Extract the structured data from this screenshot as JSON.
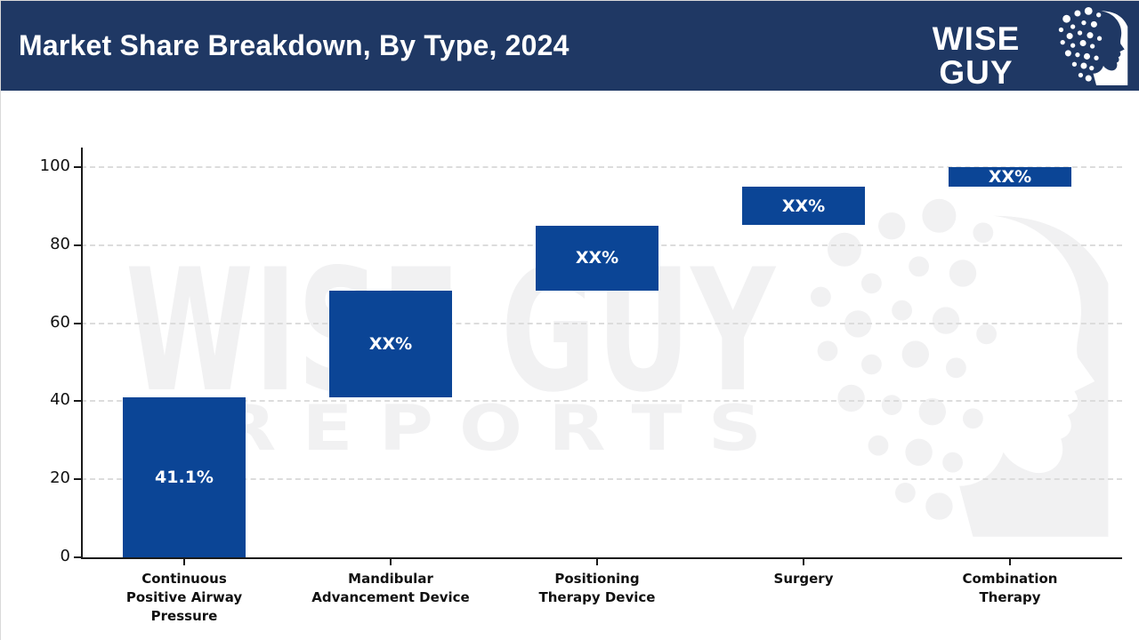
{
  "header": {
    "title": "Market Share Breakdown, By Type, 2024",
    "bg_color": "#1f3864",
    "logo": {
      "line1": "WISE GUY",
      "line2": "R E P O R T S"
    }
  },
  "watermark": {
    "line1": "WISE GUY",
    "line2": "R E P O R T S"
  },
  "chart_data": {
    "type": "bar",
    "subtype": "waterfall",
    "title": "Market Share Breakdown, By Type, 2024",
    "xlabel": "",
    "ylabel": "",
    "ylim": [
      0,
      100
    ],
    "yticks": [
      0,
      20,
      40,
      60,
      80,
      100
    ],
    "grid": "horizontal-dashed",
    "legend": "none",
    "bar_color": "#0b4596",
    "bar_label_color": "#ffffff",
    "grid_color": "#dcdcdc",
    "axis_color": "#1a1a1a",
    "categories": [
      "Continuous Positive Airway Pressure",
      "Mandibular Advancement Device",
      "Positioning Therapy Device",
      "Surgery",
      "Combination Therapy"
    ],
    "segments": [
      {
        "category": "Continuous Positive Airway Pressure",
        "lines": "Continuous\nPositive Airway\nPressure",
        "start": 0,
        "end": 41.1,
        "label": "41.1%"
      },
      {
        "category": "Mandibular Advancement Device",
        "lines": "Mandibular\nAdvancement Device",
        "start": 41.1,
        "end": 68.4,
        "label": "XX%"
      },
      {
        "category": "Positioning Therapy Device",
        "lines": "Positioning\nTherapy Device",
        "start": 68.4,
        "end": 85.0,
        "label": "XX%"
      },
      {
        "category": "Surgery",
        "lines": "Surgery",
        "start": 85.1,
        "end": 94.9,
        "label": "XX%"
      },
      {
        "category": "Combination Therapy",
        "lines": "Combination\nTherapy",
        "start": 94.9,
        "end": 100.1,
        "label": "XX%"
      }
    ]
  }
}
